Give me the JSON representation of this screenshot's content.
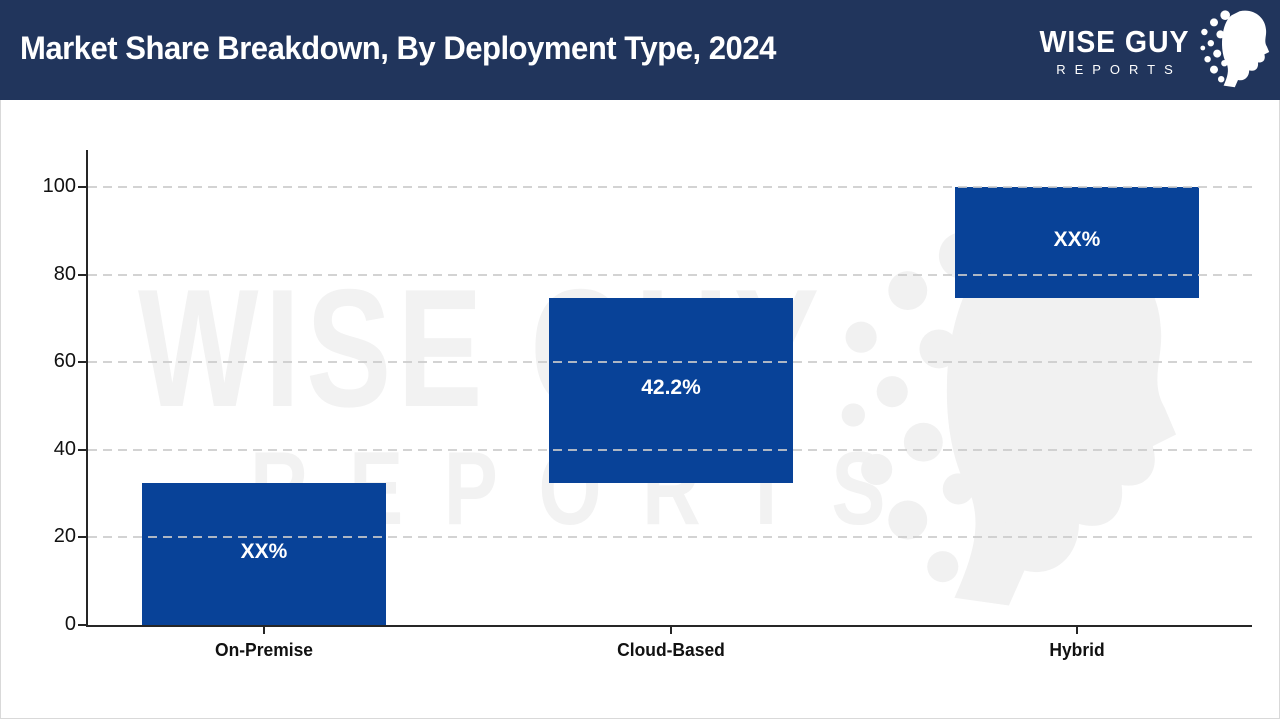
{
  "header": {
    "title": "Market Share Breakdown, By Deployment Type, 2024",
    "brand": {
      "line1": "WISE GUY",
      "line2": "REPORTS"
    }
  },
  "watermark": {
    "line1": "WISE GUY",
    "line2": "REPORTS"
  },
  "colors": {
    "header_bg": "#21355C",
    "bar": "#084298",
    "bar_label_text": "#FFFFFF",
    "grid": "#CBCBCB",
    "axis": "#262626",
    "watermark": "#F2F2F2"
  },
  "chart_data": {
    "type": "bar",
    "variant": "floating-range-segments",
    "title": "Market Share Breakdown, By Deployment Type, 2024",
    "categories": [
      "On-Premise",
      "Cloud-Based",
      "Hybrid"
    ],
    "segments": [
      {
        "category": "On-Premise",
        "start": 0,
        "end": 32.5,
        "label": "XX%"
      },
      {
        "category": "Cloud-Based",
        "start": 32.5,
        "end": 74.7,
        "label": "42.2%"
      },
      {
        "category": "Hybrid",
        "start": 74.7,
        "end": 100,
        "label": "XX%"
      }
    ],
    "xlabel": "",
    "ylabel": "",
    "ylim": [
      0,
      100
    ],
    "yticks": [
      0,
      20,
      40,
      60,
      80,
      100
    ],
    "grid": "dashed-horizontal-over-bars",
    "legend": "none"
  }
}
